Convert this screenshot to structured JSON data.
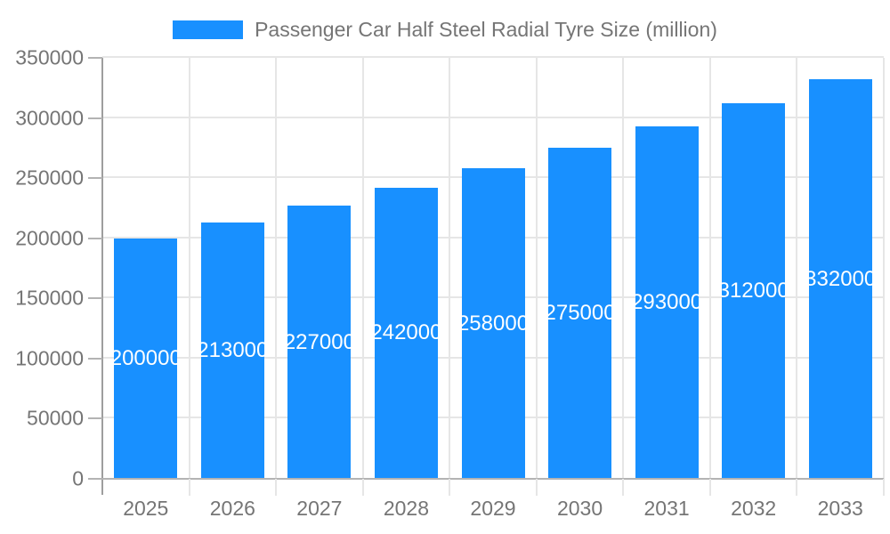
{
  "chart_data": {
    "type": "bar",
    "title": "",
    "legend": "Passenger Car Half Steel Radial Tyre Size (million)",
    "categories": [
      "2025",
      "2026",
      "2027",
      "2028",
      "2029",
      "2030",
      "2031",
      "2032",
      "2033"
    ],
    "values": [
      200000,
      213000,
      227000,
      242000,
      258000,
      275000,
      293000,
      312000,
      332000
    ],
    "bar_labels": [
      "200000",
      "213000",
      "227000",
      "242000",
      "258000",
      "275000",
      "293000",
      "312000",
      "332000"
    ],
    "y_ticks": [
      0,
      50000,
      100000,
      150000,
      200000,
      250000,
      300000,
      350000
    ],
    "y_tick_labels": [
      "0",
      "50000",
      "100000",
      "150000",
      "200000",
      "250000",
      "300000",
      "350000"
    ],
    "xlabel": "",
    "ylabel": "",
    "ylim": [
      0,
      350000
    ],
    "grid": true,
    "legend_position": "top",
    "colors": {
      "bar": "#1890ff",
      "bar_label_text": "#ffffff",
      "axis_text": "#757575",
      "grid": "#e6e6e6",
      "axis_line": "#b3b3b3",
      "axis_dark": "#9e9e9e",
      "background": "#ffffff"
    }
  }
}
